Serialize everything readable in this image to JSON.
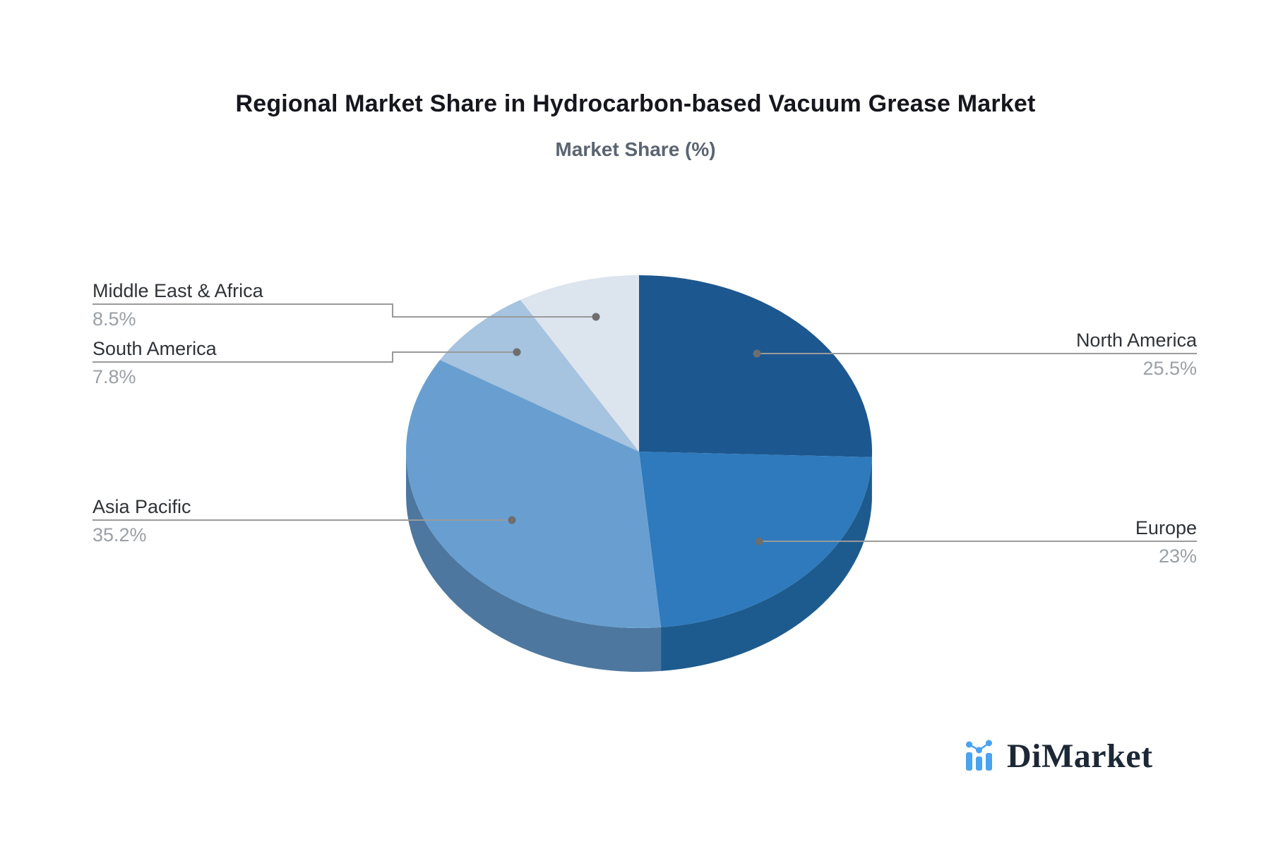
{
  "title": "Regional Market Share in Hydrocarbon-based Vacuum Grease Market",
  "subtitle": "Market Share (%)",
  "brand": {
    "name": "DiMarket",
    "icon": "bar-line-chart-icon",
    "icon_color": "#4aa2f2",
    "text_color": "#1d2836"
  },
  "chart_data": {
    "type": "pie",
    "title": "Regional Market Share in Hydrocarbon-based Vacuum Grease Market",
    "subtitle": "Market Share (%)",
    "unit": "%",
    "effect": "3d",
    "start_angle_deg": 0,
    "direction": "clockwise",
    "legend_position": "callout-labels",
    "categories": [
      "North America",
      "Europe",
      "Asia Pacific",
      "South America",
      "Middle East & Africa"
    ],
    "values": [
      25.5,
      23,
      35.2,
      7.8,
      8.5
    ],
    "colors": [
      "#1d578f",
      "#2e7abd",
      "#689fd0",
      "#a6c3df",
      "#dce4ee"
    ],
    "side_colors": [
      "#143e66",
      "#1d5b8e",
      "#4d779f",
      "#7d9cbc",
      "#a9b8cc"
    ],
    "leader_line_color": "#9a9a9a",
    "leader_dot_color": "#6e6e6e",
    "callouts": [
      {
        "label": "North America",
        "value_text": "25.5%",
        "side": "right"
      },
      {
        "label": "Europe",
        "value_text": "23%",
        "side": "right"
      },
      {
        "label": "Asia Pacific",
        "value_text": "35.2%",
        "side": "left"
      },
      {
        "label": "South America",
        "value_text": "7.8%",
        "side": "left"
      },
      {
        "label": "Middle East & Africa",
        "value_text": "8.5%",
        "side": "left"
      }
    ]
  }
}
